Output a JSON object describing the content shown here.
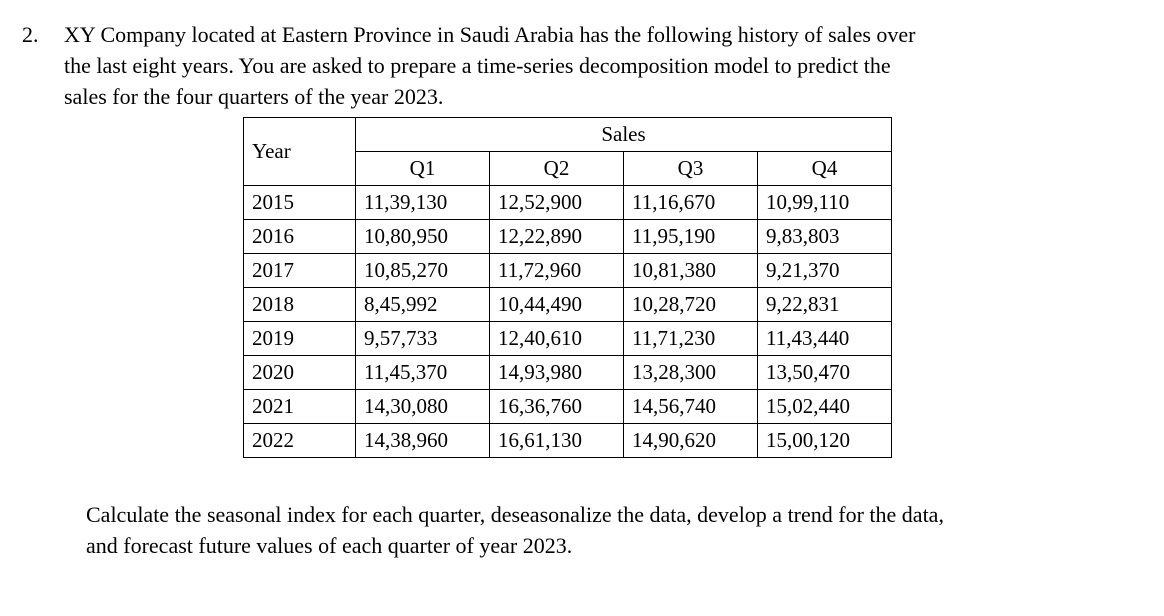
{
  "problem": {
    "number": "2.",
    "intro_lines": [
      "XY Company located at Eastern Province in Saudi Arabia has the following history of sales over",
      "the last eight years. You are asked to prepare a time-series decomposition model to predict the",
      "sales for the four quarters of the year 2023."
    ],
    "footer_lines": [
      "Calculate the seasonal index for each quarter, deseasonalize the data, develop a trend for the data,",
      "and forecast future values of each quarter of year 2023."
    ]
  },
  "table": {
    "sales_header": "Sales",
    "year_header": "Year",
    "quarter_headers": [
      "Q1",
      "Q2",
      "Q3",
      "Q4"
    ],
    "rows": [
      {
        "year": "2015",
        "values": [
          "11,39,130",
          "12,52,900",
          "11,16,670",
          "10,99,110"
        ]
      },
      {
        "year": "2016",
        "values": [
          "10,80,950",
          "12,22,890",
          "11,95,190",
          "9,83,803"
        ]
      },
      {
        "year": "2017",
        "values": [
          "10,85,270",
          "11,72,960",
          "10,81,380",
          "9,21,370"
        ]
      },
      {
        "year": "2018",
        "values": [
          "8,45,992",
          "10,44,490",
          "10,28,720",
          "9,22,831"
        ]
      },
      {
        "year": "2019",
        "values": [
          "9,57,733",
          "12,40,610",
          "11,71,230",
          "11,43,440"
        ]
      },
      {
        "year": "2020",
        "values": [
          "11,45,370",
          "14,93,980",
          "13,28,300",
          "13,50,470"
        ]
      },
      {
        "year": "2021",
        "values": [
          "14,30,080",
          "16,36,760",
          "14,56,740",
          "15,02,440"
        ]
      },
      {
        "year": "2022",
        "values": [
          "14,38,960",
          "16,61,130",
          "14,90,620",
          "15,00,120"
        ]
      }
    ]
  }
}
